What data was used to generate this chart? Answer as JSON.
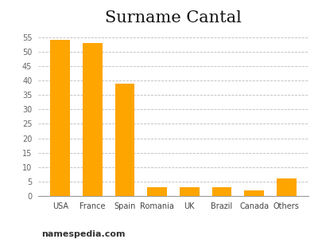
{
  "title": "Surname Cantal",
  "categories": [
    "USA",
    "France",
    "Spain",
    "Romania",
    "UK",
    "Brazil",
    "Canada",
    "Others"
  ],
  "values": [
    54,
    53,
    39,
    3,
    3,
    3,
    2,
    6
  ],
  "bar_color": "#FFA500",
  "ylim": [
    0,
    58
  ],
  "yticks": [
    0,
    5,
    10,
    15,
    20,
    25,
    30,
    35,
    40,
    45,
    50,
    55
  ],
  "grid_color": "#bbbbbb",
  "background_color": "#ffffff",
  "title_fontsize": 15,
  "tick_fontsize": 7,
  "footer_text": "namespedia.com",
  "footer_fontsize": 8,
  "bar_width": 0.6
}
